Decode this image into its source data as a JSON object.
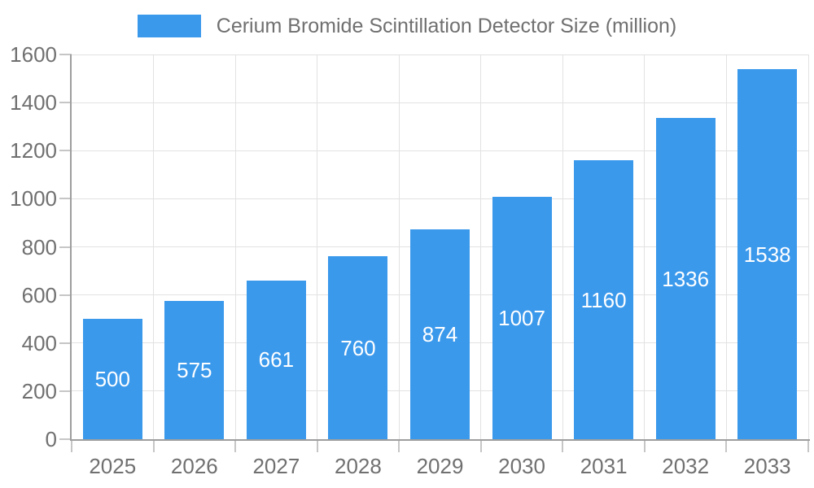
{
  "chart_data": {
    "type": "bar",
    "title": "Cerium Bromide Scintillation Detector Size (million)",
    "legend": {
      "position": "top",
      "label": "Cerium Bromide Scintillation Detector Size (million)"
    },
    "categories": [
      "2025",
      "2026",
      "2027",
      "2028",
      "2029",
      "2030",
      "2031",
      "2032",
      "2033"
    ],
    "series": [
      {
        "name": "Cerium Bromide Scintillation Detector Size (million)",
        "values": [
          500,
          575,
          661,
          760,
          874,
          1007,
          1160,
          1336,
          1538
        ]
      }
    ],
    "value_labels_shown": true,
    "xlabel": "",
    "ylabel": "",
    "ylim": [
      0,
      1600
    ],
    "ytick_step": 200,
    "yticks": [
      0,
      200,
      400,
      600,
      800,
      1000,
      1200,
      1400,
      1600
    ],
    "grid": true,
    "colors": {
      "bar": "#3B99EC",
      "bar_label": "#FFFFFF",
      "axis_line": "#9E9E9E",
      "gridline": "#E2E2E2",
      "tick": "#C6C6C6",
      "text": "#707070",
      "background": "#FFFFFF"
    }
  }
}
